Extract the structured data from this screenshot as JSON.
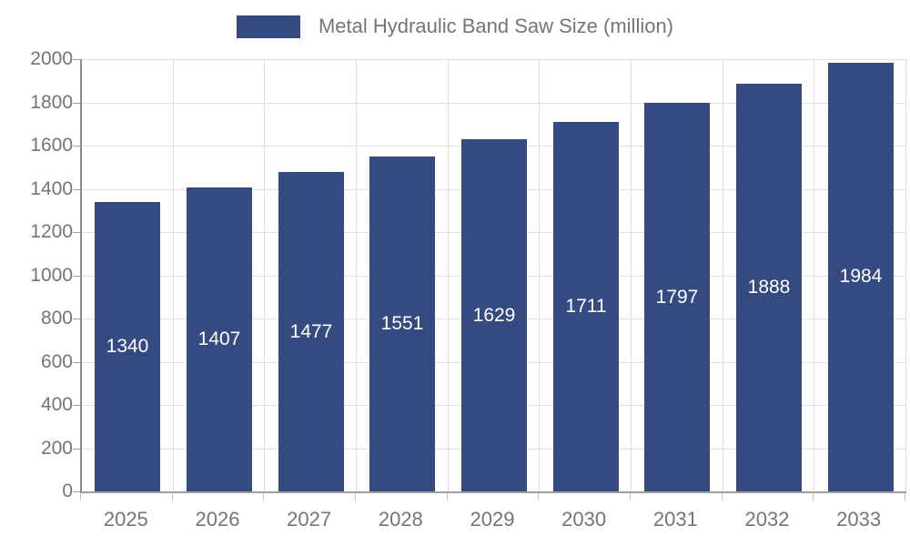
{
  "legend": {
    "label": "Metal Hydraulic Band Saw Size (million)",
    "swatch_color": "#364a82"
  },
  "chart_data": {
    "type": "bar",
    "title": "Metal Hydraulic Band Saw Size (million)",
    "series_name": "Metal Hydraulic Band Saw Size (million)",
    "categories": [
      "2025",
      "2026",
      "2027",
      "2028",
      "2029",
      "2030",
      "2031",
      "2032",
      "2033"
    ],
    "values": [
      1340,
      1407,
      1477,
      1551,
      1629,
      1711,
      1797,
      1888,
      1984
    ],
    "xlabel": "",
    "ylabel": "",
    "ylim": [
      0,
      2000
    ],
    "yticks": [
      0,
      200,
      400,
      600,
      800,
      1000,
      1200,
      1400,
      1600,
      1800,
      2000
    ],
    "grid": true,
    "legend_position": "top",
    "bar_color": "#364a82",
    "value_label_color": "#ffffff",
    "axis_text_color": "#757575",
    "gridline_color": "#e0e0e0"
  }
}
